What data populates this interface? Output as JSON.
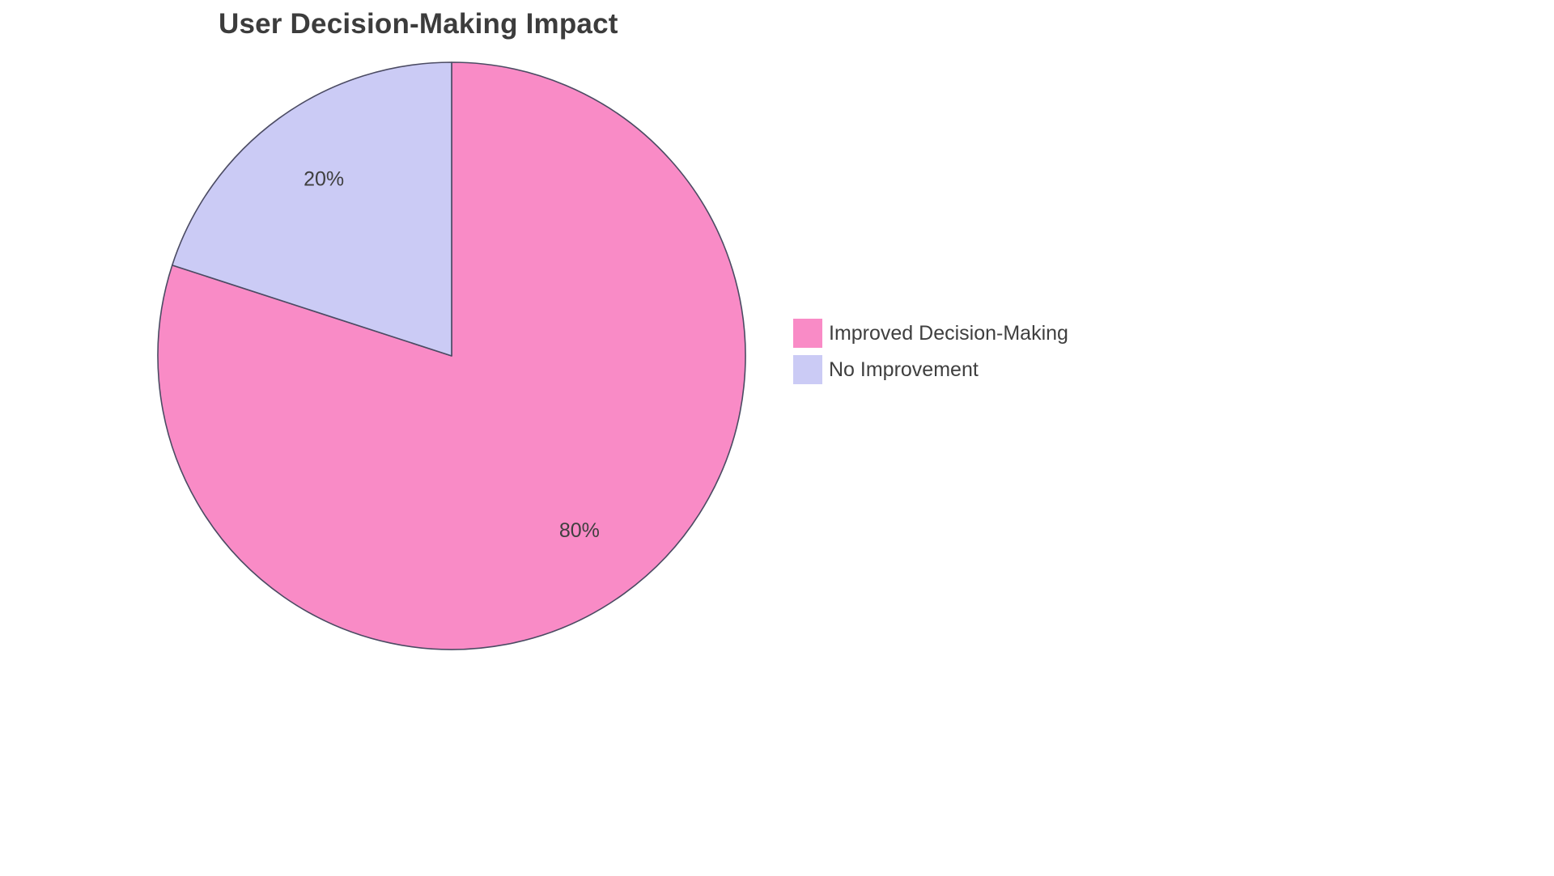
{
  "title": "User Decision-Making Impact",
  "chart_data": {
    "type": "pie",
    "title": "User Decision-Making Impact",
    "labels": [
      "Improved Decision-Making",
      "No Improvement"
    ],
    "values": [
      80,
      20
    ],
    "value_labels": [
      "80%",
      "20%"
    ],
    "colors": [
      "#F98BC6",
      "#CBCBF5"
    ],
    "stroke_color": "#4B4B63",
    "start_angle": "top",
    "direction": "clockwise",
    "legend_position": "right",
    "background": "#FFFFFF"
  },
  "legend": {
    "items": [
      {
        "label": "Improved Decision-Making",
        "color": "#F98BC6"
      },
      {
        "label": "No Improvement",
        "color": "#CBCBF5"
      }
    ]
  }
}
